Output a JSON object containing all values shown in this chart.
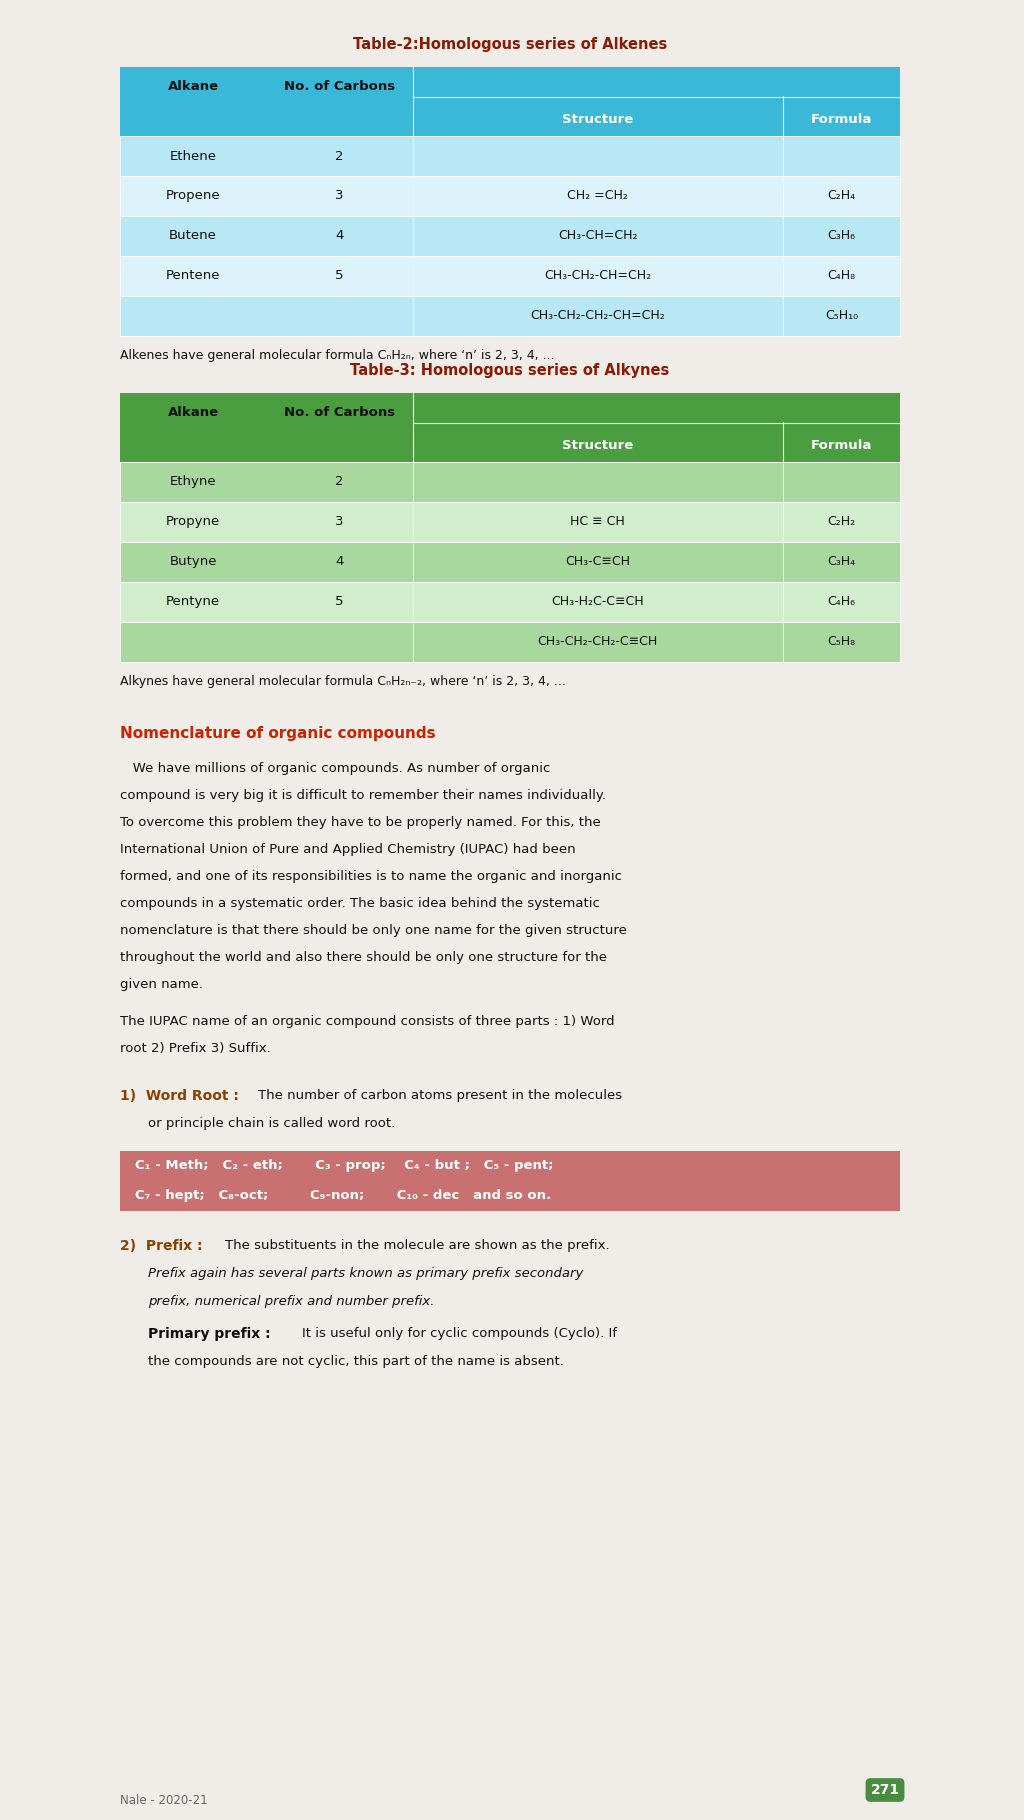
{
  "title_table2": "Table-2:Homologous series of Alkenes",
  "title_table3": "Table-3: Homologous series of Alkynes",
  "table2_headers": [
    "Alkane",
    "No. of Carbons",
    "Structure",
    "Formula"
  ],
  "table2_rows": [
    [
      "Ethene",
      "2",
      "",
      ""
    ],
    [
      "Propene",
      "3",
      "CH₂ =CH₂",
      "C₂H₄"
    ],
    [
      "Butene",
      "4",
      "CH₃-CH=CH₂",
      "C₃H₆"
    ],
    [
      "Pentene",
      "5",
      "CH₃-CH₂-CH=CH₂",
      "C₄H₈"
    ],
    [
      "",
      "",
      "CH₃-CH₂-CH₂-CH=CH₂",
      "C₅H₁₀"
    ]
  ],
  "table2_note": "Alkenes have general molecular formula CₙH₂ₙ, where ‘n’ is 2, 3, 4, ...",
  "table3_headers": [
    "Alkane",
    "No. of Carbons",
    "Structure",
    "Formula"
  ],
  "table3_rows": [
    [
      "Ethyne",
      "2",
      "",
      ""
    ],
    [
      "Propyne",
      "3",
      "HC ≡ CH",
      "C₂H₂"
    ],
    [
      "Butyne",
      "4",
      "CH₃-C≡CH",
      "C₃H₄"
    ],
    [
      "Pentyne",
      "5",
      "CH₃-H₂C-C≡CH",
      "C₄H₆"
    ],
    [
      "",
      "",
      "CH₃-CH₂-CH₂-C≡CH",
      "C₅H₈"
    ]
  ],
  "table3_note": "Alkynes have general molecular formula CₙH₂ₙ₋₂, where ‘n’ is 2, 3, 4, ...",
  "nomenclature_title": "Nomenclature of organic compounds",
  "para1_lines": [
    "   We have millions of organic compounds. As number of organic",
    "compound is very big it is difficult to remember their names individually.",
    "To overcome this problem they have to be properly named. For this, the",
    "International Union of Pure and Applied Chemistry (IUPAC) had been",
    "formed, and one of its responsibilities is to name the organic and inorganic",
    "compounds in a systematic order. The basic idea behind the systematic",
    "nomenclature is that there should be only one name for the given structure",
    "throughout the world and also there should be only one structure for the",
    "given name."
  ],
  "para2_lines": [
    "The IUPAC name of an organic compound consists of three parts : 1) Word",
    "root 2) Prefix 3) Suffix."
  ],
  "word_root_label": "1)  Word Root : ",
  "word_root_text1": "The number of carbon atoms present in the molecules",
  "word_root_text2": "or principle chain is called word root.",
  "word_root_box_line1": "C₁ - Meth;   C₂ - eth;       C₃ - prop;    C₄ - but ;   C₅ - pent;",
  "word_root_box_line2": "C₇ - hept;   C₈-oct;         C₉-non;       C₁₀ - dec   and so on.",
  "prefix_label": "2)  Prefix : ",
  "prefix_text1": "The substituents in the molecule are shown as the prefix.",
  "prefix_text2": "Prefix again has several parts known as primary prefix secondary",
  "prefix_text3": "prefix, numerical prefix and number prefix.",
  "primary_prefix_label": "Primary prefix : ",
  "primary_prefix_text1": "It is useful only for cyclic compounds (Cyclo). If",
  "primary_prefix_text2": "the compounds are not cyclic, this part of the name is absent.",
  "page_number": "271",
  "year_label": "Nale - 2020-21",
  "bg_color": "#f0ede8",
  "table2_header_bg": "#3ab8d8",
  "table2_row_odd": "#b8e8f5",
  "table2_row_even": "#ddf3fb",
  "table3_header_bg": "#4a9e3f",
  "table3_row_odd": "#a8d89e",
  "table3_row_even": "#d0edcc",
  "word_root_box_bg": "#c97070",
  "nomenclature_color": "#cc2200",
  "word_root_color": "#8b4000",
  "prefix_color": "#8b4000",
  "header_text_color": "#111111",
  "title_color": "#8b1a00",
  "page_num_bg": "#4a8c3f"
}
